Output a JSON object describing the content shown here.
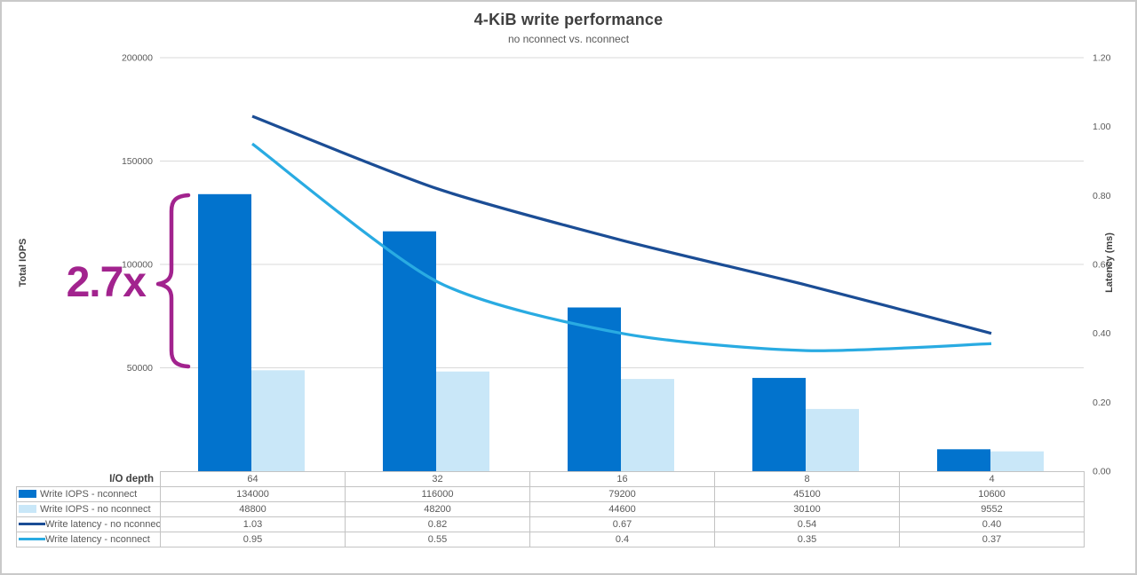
{
  "title": "4-KiB write performance",
  "subtitle": "no nconnect vs. nconnect",
  "annotation": {
    "label": "2.7x",
    "color": "#A2238E",
    "meaning": "ratio bracket spanning the nconnect bar top to the no-nconnect bar top at I/O depth 64"
  },
  "chart_data": {
    "type": "bar+line combo",
    "title": "4-KiB write performance",
    "subtitle": "no nconnect vs. nconnect",
    "categories": [
      "64",
      "32",
      "16",
      "8",
      "4"
    ],
    "x_title": "I/O depth",
    "left_axis": {
      "label": "Total IOPS",
      "min": 0,
      "max": 200000,
      "tick_values": [
        200000,
        150000,
        100000,
        50000
      ],
      "tick_labels": [
        "200000",
        "150000",
        "100000",
        "50000"
      ],
      "grid": true
    },
    "right_axis": {
      "label": "Latency (ms)",
      "min": 0,
      "max": 1.2,
      "tick_values": [
        1.2,
        1.0,
        0.8,
        0.6,
        0.4,
        0.2,
        0.0
      ],
      "tick_labels": [
        "1.20",
        "1.00",
        "0.80",
        "0.60",
        "0.40",
        "0.20",
        "0.00"
      ],
      "grid": false
    },
    "legend_position": "table-left",
    "series": [
      {
        "name": "Write IOPS - nconnect",
        "type": "bar",
        "axis": "left",
        "color": "#0273CD",
        "values": [
          134000,
          116000,
          79200,
          45100,
          10600
        ],
        "table_display": [
          "134000",
          "116000",
          "79200",
          "45100",
          "10600"
        ]
      },
      {
        "name": "Write IOPS - no nconnect",
        "type": "bar",
        "axis": "left",
        "color": "#C9E7F8",
        "values": [
          48800,
          48200,
          44600,
          30100,
          9552
        ],
        "table_display": [
          "48800",
          "48200",
          "44600",
          "30100",
          "9552"
        ]
      },
      {
        "name": "Write latency - no nconnect",
        "type": "line",
        "axis": "right",
        "color": "#1B4D95",
        "values": [
          1.03,
          0.82,
          0.67,
          0.54,
          0.4
        ],
        "table_display": [
          "1.03",
          "0.82",
          "0.67",
          "0.54",
          "0.40"
        ]
      },
      {
        "name": "Write latency - nconnect",
        "type": "line",
        "axis": "right",
        "color": "#29ABE2",
        "values": [
          0.95,
          0.55,
          0.4,
          0.35,
          0.37
        ],
        "table_display": [
          "0.95",
          "0.55",
          "0.4",
          "0.35",
          "0.37"
        ]
      }
    ]
  }
}
